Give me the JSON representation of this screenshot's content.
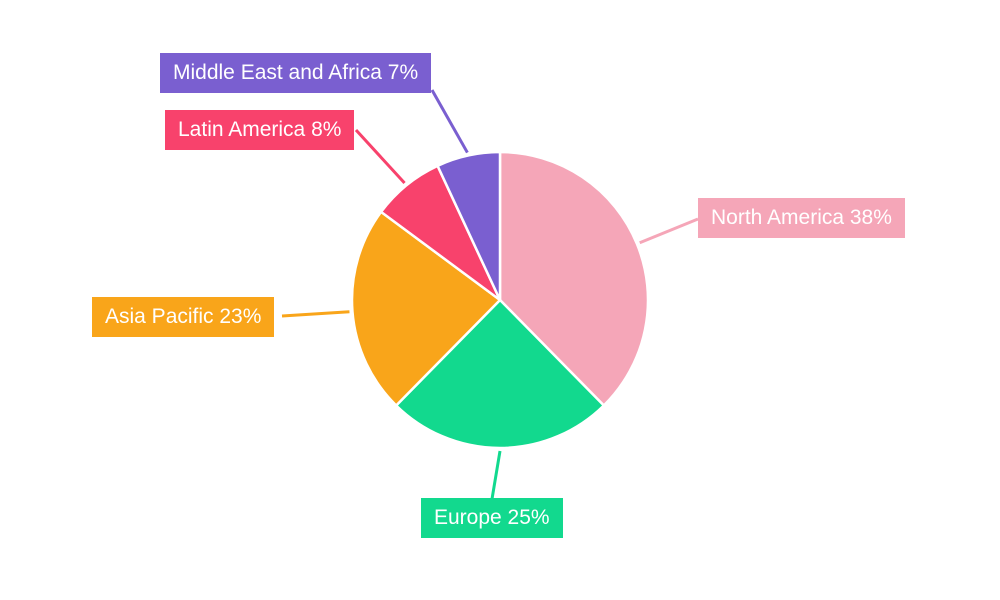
{
  "chart_data": {
    "type": "pie",
    "categories": [
      "North America",
      "Europe",
      "Asia Pacific",
      "Latin America",
      "Middle East and Africa"
    ],
    "values": [
      38,
      25,
      23,
      8,
      7
    ],
    "unit": "%",
    "label_texts": [
      "North America 38%",
      "Europe 25%",
      "Asia Pacific 23%",
      "Latin America 8%",
      "Middle East and Africa 7%"
    ],
    "colors": [
      "#F5A6B8",
      "#12D98E",
      "#F9A51A",
      "#F8426C",
      "#7A5FD0"
    ],
    "label_text_color": "#FFFFFF",
    "background": "#FFFFFF",
    "start_angle": "top",
    "direction": "clockwise",
    "legend_position": "callout-labels-with-leader-lines",
    "title": ""
  }
}
